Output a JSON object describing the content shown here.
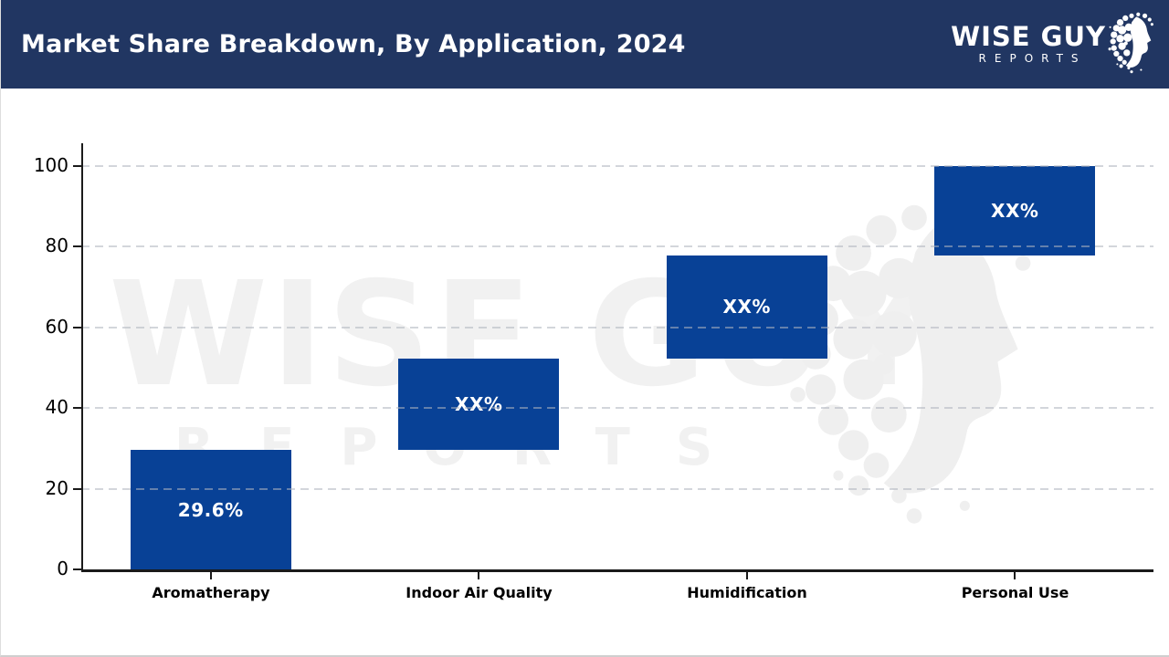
{
  "header": {
    "title": "Market Share Breakdown, By Application, 2024",
    "brand": {
      "line1": "WISE GUY",
      "line2": "REPORTS"
    }
  },
  "watermark": {
    "line1": "WISE GUY",
    "line2": "REPORTS"
  },
  "chart_data": {
    "type": "bar",
    "variant": "waterfall",
    "title": "Market Share Breakdown, By Application, 2024",
    "categories": [
      "Aromatherapy",
      "Indoor Air Quality",
      "Humidification",
      "Personal Use"
    ],
    "segments": [
      {
        "category": "Aromatherapy",
        "start": 0,
        "end": 29.6,
        "label": "29.6%"
      },
      {
        "category": "Indoor Air Quality",
        "start": 29.6,
        "end": 52.3,
        "label": "XX%"
      },
      {
        "category": "Humidification",
        "start": 52.3,
        "end": 77.8,
        "label": "XX%"
      },
      {
        "category": "Personal Use",
        "start": 77.8,
        "end": 100,
        "label": "XX%"
      }
    ],
    "ylim": [
      0,
      100
    ],
    "yticks": [
      0,
      20,
      40,
      60,
      80,
      100
    ],
    "grid": {
      "horizontal": true,
      "style": "dashed"
    },
    "legend": "none",
    "colors": {
      "bar": "#084196",
      "axis": "#1a1a1a",
      "grid": "#d9d9d9",
      "header_bg": "#213662",
      "bar_label_text": "#ffffff"
    }
  }
}
